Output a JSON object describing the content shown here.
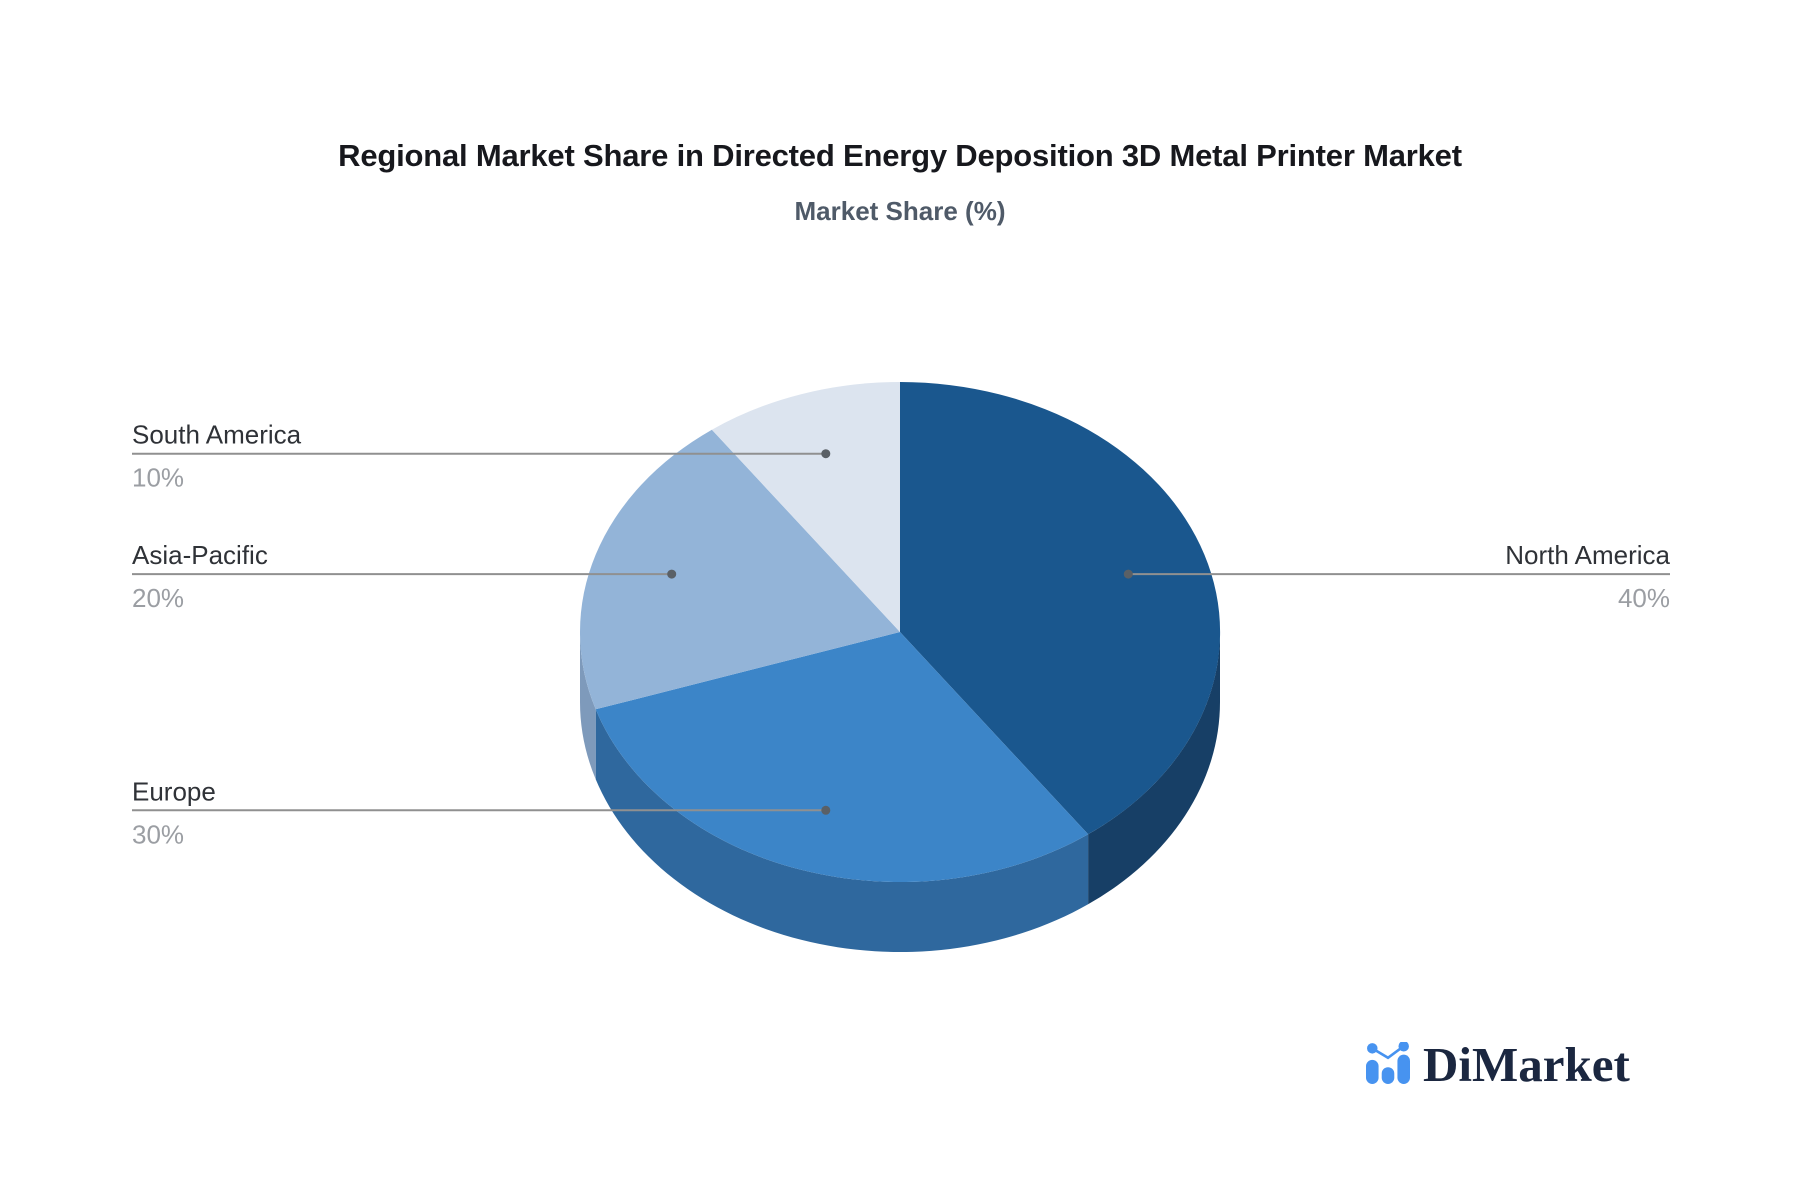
{
  "page": {
    "title": "Regional Market Share in Directed Energy Deposition 3D Metal Printer Market",
    "subtitle": "Market Share (%)"
  },
  "chart_data": {
    "type": "pie",
    "title": "Regional Market Share in Directed Energy Deposition 3D Metal Printer Market",
    "subtitle": "Market Share (%)",
    "unit": "%",
    "style": "3d-depth-pie",
    "start_angle_deg": 0,
    "direction": "clockwise",
    "legend": "none",
    "total": 100,
    "series": [
      {
        "name": "North America",
        "value": 40,
        "value_label": "40%",
        "label_side": "right",
        "color": "#1A578E",
        "side_color": "#173F66"
      },
      {
        "name": "Europe",
        "value": 30,
        "value_label": "30%",
        "label_side": "left",
        "color": "#3C85C8",
        "side_color": "#2F689E"
      },
      {
        "name": "Asia-Pacific",
        "value": 20,
        "value_label": "20%",
        "label_side": "left",
        "color": "#93B4D8",
        "side_color": "#7E9ABB"
      },
      {
        "name": "South America",
        "value": 10,
        "value_label": "10%",
        "label_side": "left",
        "color": "#DCE4EF",
        "side_color": "#B9C6D9"
      }
    ],
    "label_name_color": "#2F3237",
    "label_value_color": "#9B9EA3",
    "leader_line_color": "#909090",
    "leader_dot_color": "#5A6066"
  },
  "logo": {
    "text": "DiMarket",
    "icon": "bar-line-chart-icon",
    "icon_color": "#4793F0",
    "text_color": "#1B2740"
  }
}
